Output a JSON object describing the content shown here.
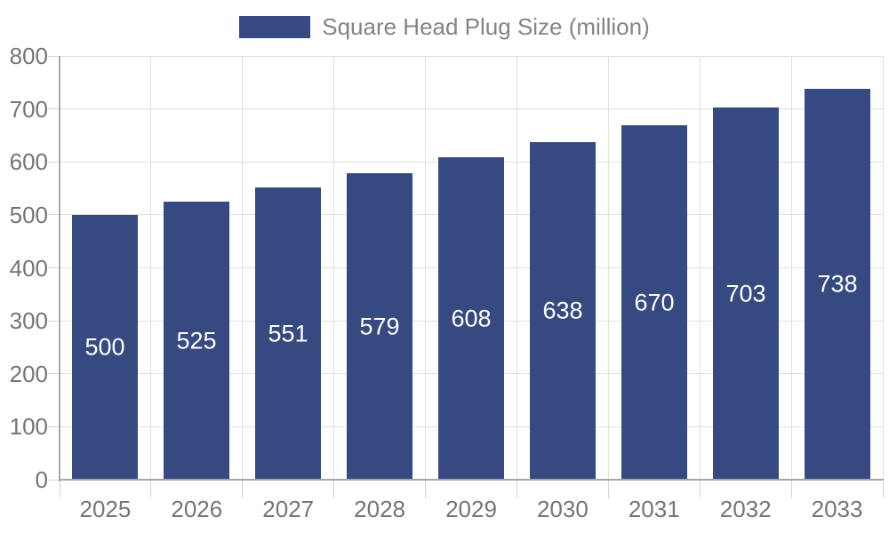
{
  "legend": {
    "label": "Square Head Plug Size (million)"
  },
  "colors": {
    "bar": "#364a81",
    "grid": "#e0e0e0",
    "axis": "#a6a6a6",
    "tick_label": "#757575",
    "legend_text": "#848484",
    "value_label": "#ffffff",
    "background": "#ffffff"
  },
  "chart_data": {
    "type": "bar",
    "title": "Square Head Plug Size (million)",
    "series_name": "Square Head Plug Size (million)",
    "categories": [
      "2025",
      "2026",
      "2027",
      "2028",
      "2029",
      "2030",
      "2031",
      "2032",
      "2033"
    ],
    "values": [
      500,
      525,
      551,
      579,
      608,
      638,
      670,
      703,
      738
    ],
    "xlabel": "",
    "ylabel": "",
    "ylim": [
      0,
      800
    ],
    "yticks": [
      0,
      100,
      200,
      300,
      400,
      500,
      600,
      700,
      800
    ],
    "grid": true,
    "legend_position": "top-center",
    "bar_labels_inside": true,
    "bar_label_position": "center"
  }
}
